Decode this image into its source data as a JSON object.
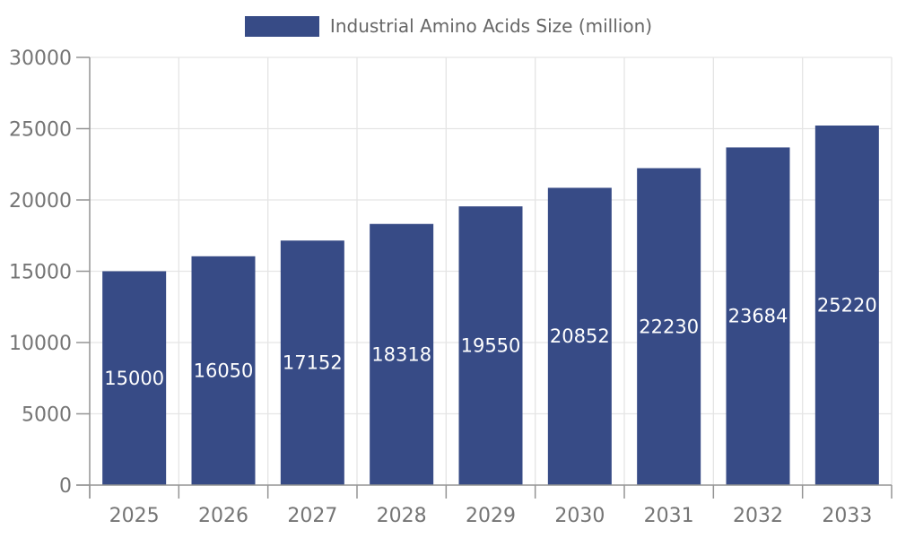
{
  "chart_data": {
    "type": "bar",
    "title": "",
    "xlabel": "",
    "ylabel": "",
    "categories": [
      "2025",
      "2026",
      "2027",
      "2028",
      "2029",
      "2030",
      "2031",
      "2032",
      "2033"
    ],
    "values": [
      15000,
      16050,
      17152,
      18318,
      19550,
      20852,
      22230,
      23684,
      25220
    ],
    "series_name": "Industrial Amino Acids Size (million)",
    "ylim": [
      0,
      30000
    ],
    "ytick_step": 5000,
    "yticks": [
      0,
      5000,
      10000,
      15000,
      20000,
      25000,
      30000
    ],
    "grid": true,
    "value_labels": "inside-center",
    "legend": {
      "position": "top",
      "label": "Industrial Amino Acids Size (million)"
    },
    "colors": {
      "bar": "#374B86",
      "value_label": "#FFFFFF",
      "axis_text": "#757575",
      "legend_text": "#666666",
      "grid_line": "#E5E5E5",
      "axis_line": "#949494"
    }
  }
}
